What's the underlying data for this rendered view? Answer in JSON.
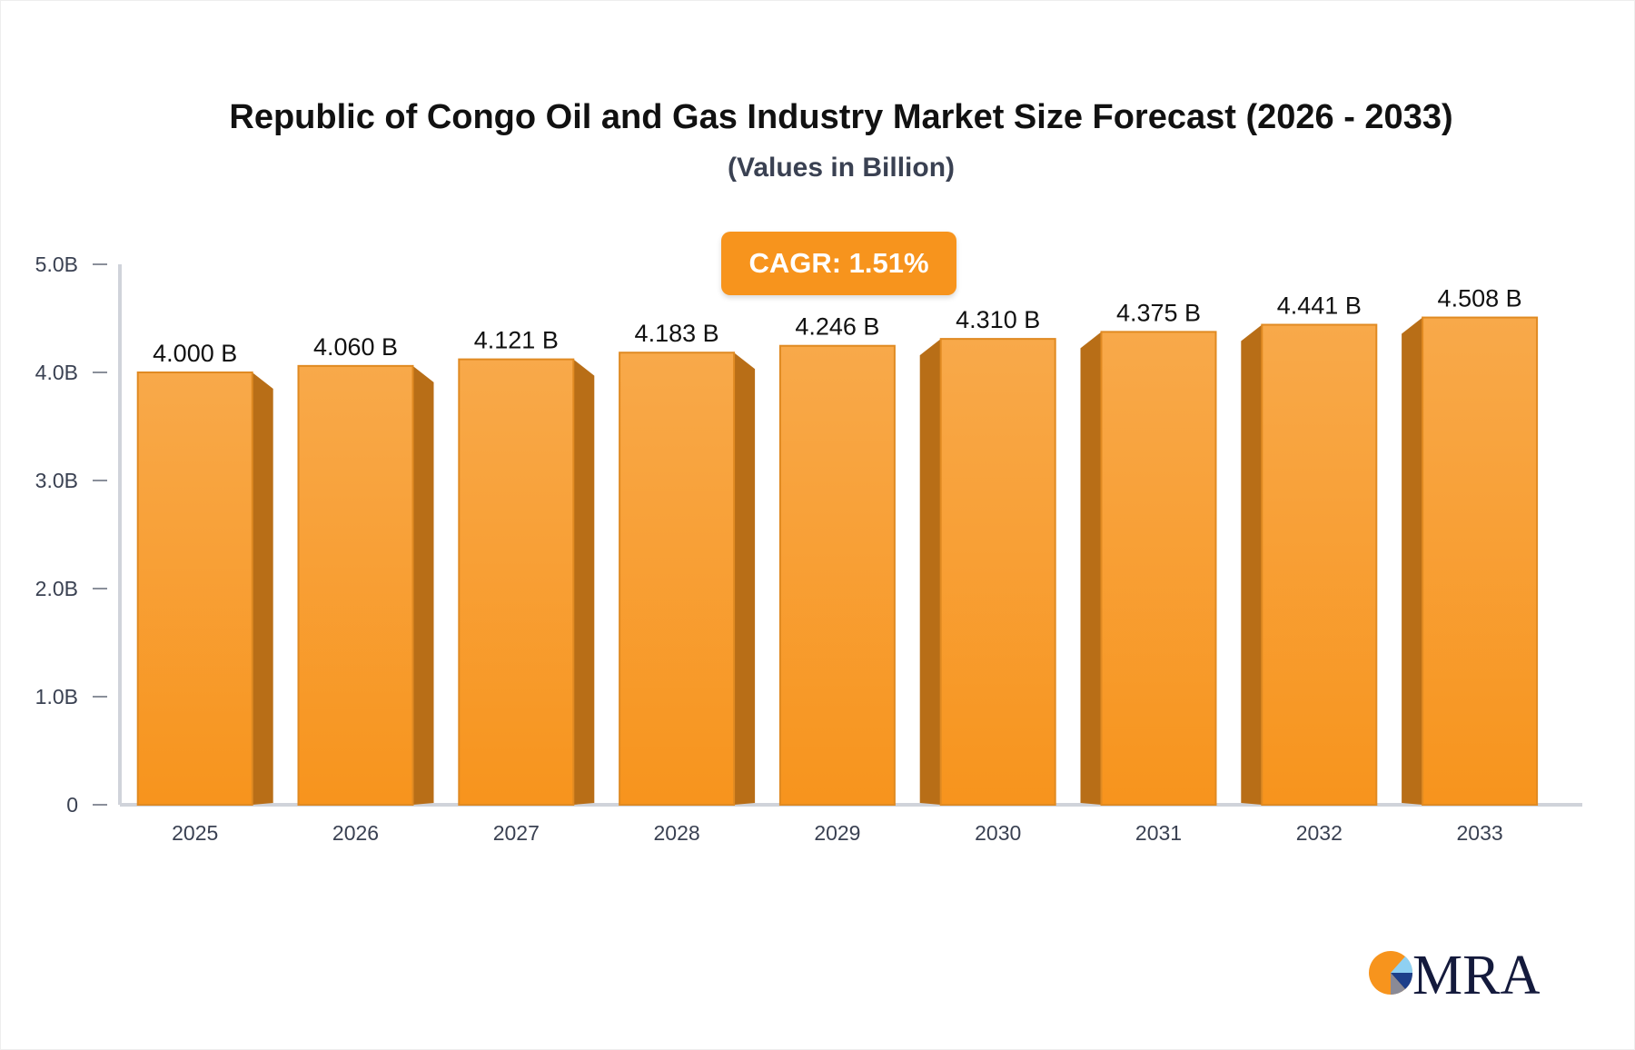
{
  "chart_data": {
    "type": "bar",
    "title": "Republic of Congo Oil and Gas Industry Market Size Forecast (2026 - 2033)",
    "subtitle": "(Values in Billion)",
    "annotation": "CAGR: 1.51%",
    "categories": [
      "2025",
      "2026",
      "2027",
      "2028",
      "2029",
      "2030",
      "2031",
      "2032",
      "2033"
    ],
    "values": [
      4.0,
      4.06,
      4.121,
      4.183,
      4.246,
      4.31,
      4.375,
      4.441,
      4.508
    ],
    "data_labels": [
      "4.000 B",
      "4.060 B",
      "4.121 B",
      "4.183 B",
      "4.246 B",
      "4.310 B",
      "4.375 B",
      "4.441 B",
      "4.508 B"
    ],
    "yticks": [
      0,
      1,
      2,
      3,
      4,
      5
    ],
    "ytick_labels": [
      "0",
      "1.0B",
      "2.0B",
      "3.0B",
      "4.0B",
      "5.0B"
    ],
    "ylim": [
      0,
      5
    ],
    "grid": false,
    "colors": {
      "bar_top": "#f8a94a",
      "bar_bottom": "#f7941d",
      "bar_side": "#b86e17",
      "bar_edge": "#e08a22",
      "cagr_bg": "#f7941d"
    }
  },
  "logo": {
    "text": "MRA"
  }
}
